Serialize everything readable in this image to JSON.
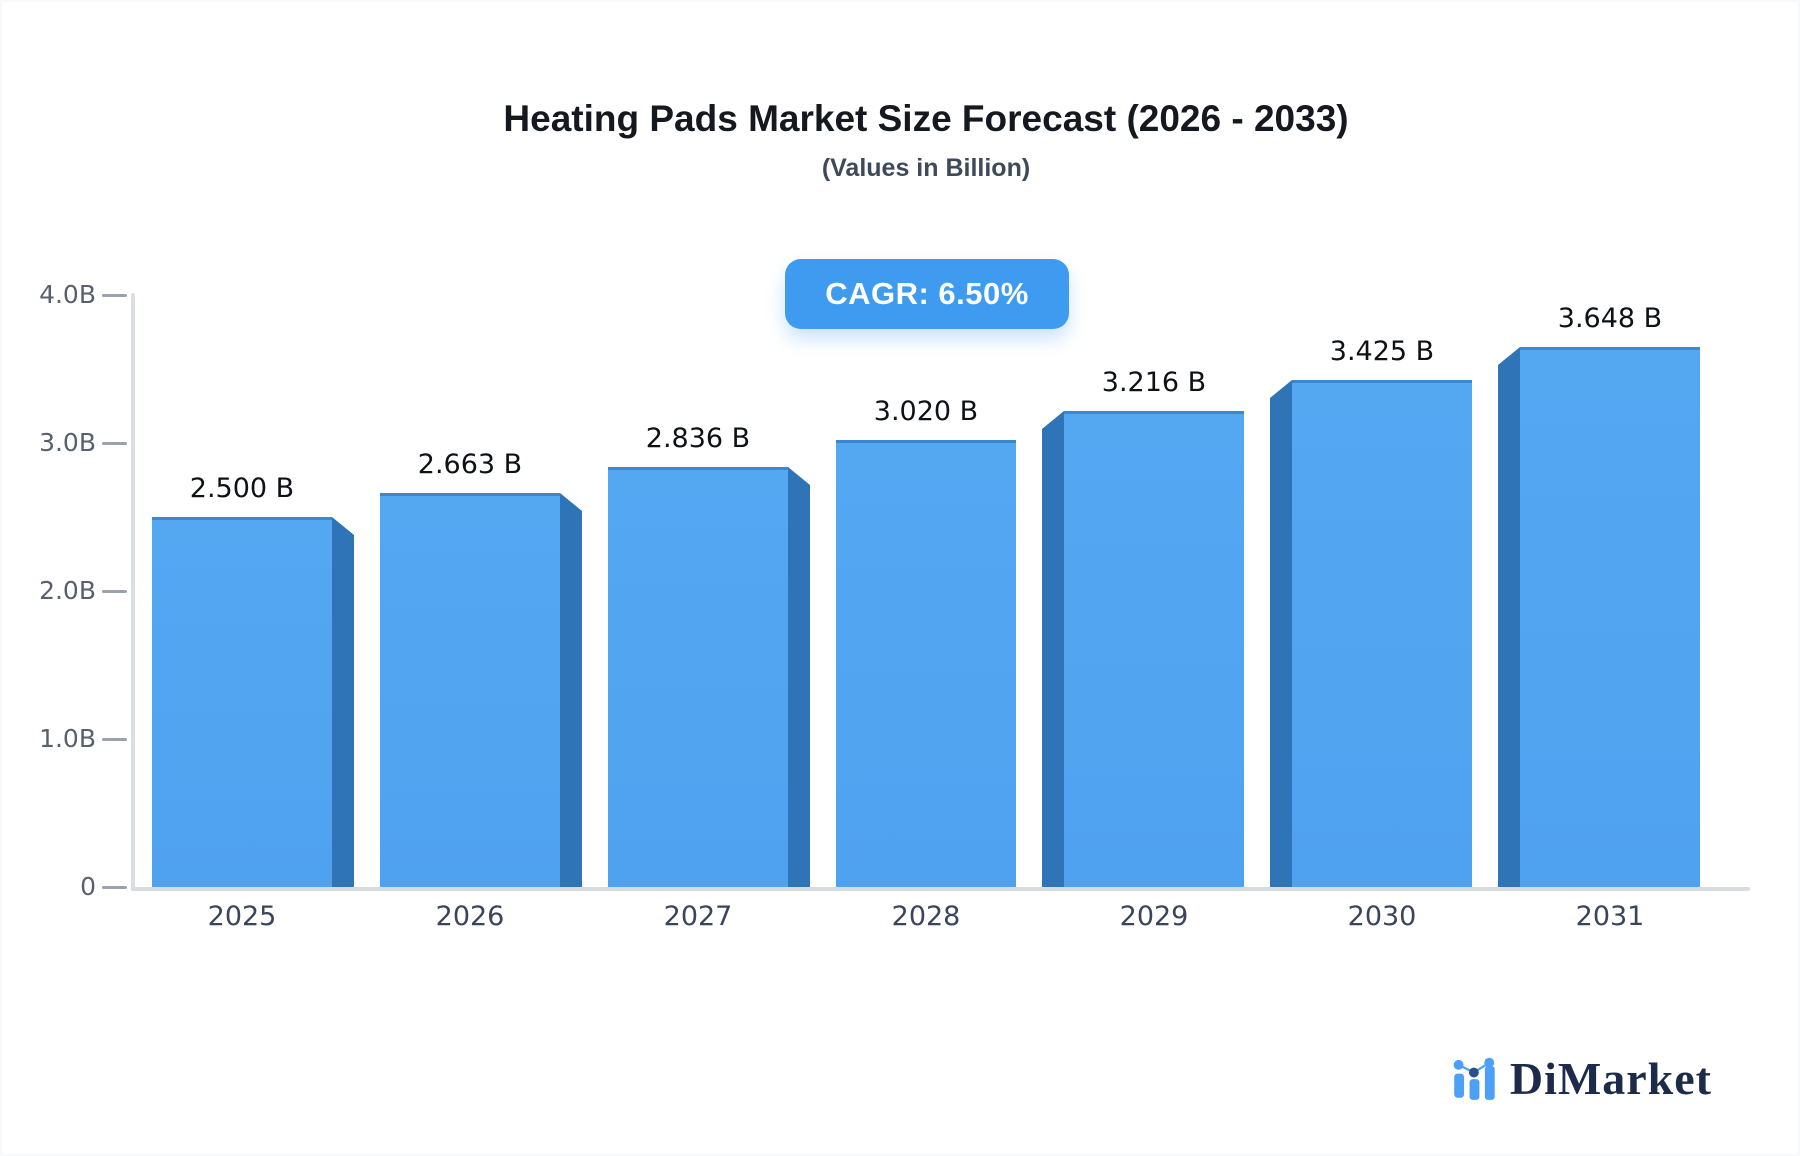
{
  "chart_data": {
    "type": "bar",
    "title": "Heating Pads Market Size Forecast (2026 - 2033)",
    "subtitle": "(Values in Billion)",
    "annotation": "CAGR: 6.50%",
    "categories": [
      "2025",
      "2026",
      "2027",
      "2028",
      "2029",
      "2030",
      "2031"
    ],
    "values": [
      2.5,
      2.663,
      2.836,
      3.02,
      3.216,
      3.425,
      3.648
    ],
    "value_labels": [
      "2.500 B",
      "2.663 B",
      "2.836 B",
      "3.020 B",
      "3.216 B",
      "3.425 B",
      "3.648 B"
    ],
    "xlabel": "",
    "ylabel": "",
    "ylim": [
      0,
      4.0
    ],
    "y_ticks": {
      "labels": [
        "0",
        "1.0B",
        "2.0B",
        "3.0B",
        "4.0B"
      ],
      "values": [
        0,
        1,
        2,
        3,
        4
      ]
    },
    "grid": false,
    "legend": false,
    "bar_face_color": "#54a8f2",
    "bar_face_color_bottom": "#4fa2ef",
    "bar_side_color": "#2e74b7",
    "bar_top_edge_color": "#3d87d1"
  },
  "badge": {
    "background": "#3f9bef",
    "text_color": "#ffffff"
  },
  "branding": {
    "name": "DiMarket",
    "text_color": "#1c2b4a",
    "icon_color": "#4da0f5",
    "icon_dot_dark_color": "#2b4f88"
  }
}
